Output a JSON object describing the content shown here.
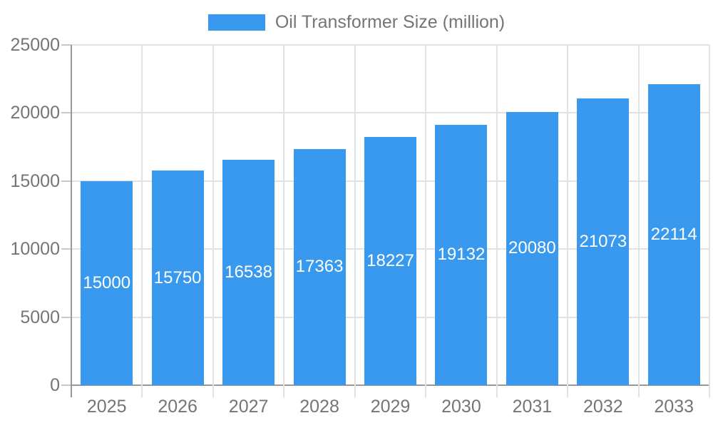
{
  "legend": {
    "label": "Oil Transformer Size (million)"
  },
  "chart_data": {
    "type": "bar",
    "title": "Oil Transformer Size (million)",
    "categories": [
      "2025",
      "2026",
      "2027",
      "2028",
      "2029",
      "2030",
      "2031",
      "2032",
      "2033"
    ],
    "series": [
      {
        "name": "Oil Transformer Size (million)",
        "values": [
          15000,
          15750,
          16538,
          17363,
          18227,
          19132,
          20080,
          21073,
          22114
        ]
      }
    ],
    "value_labels": [
      "15000",
      "15750",
      "16538",
      "17363",
      "18227",
      "19132",
      "20080",
      "21073",
      "22114"
    ],
    "xlabel": "",
    "ylabel": "",
    "ylim": [
      0,
      25000
    ],
    "y_ticks": [
      0,
      5000,
      10000,
      15000,
      20000,
      25000
    ],
    "y_tick_labels": [
      "0",
      "5000",
      "10000",
      "15000",
      "20000",
      "25000"
    ],
    "grid": true,
    "legend_position": "top",
    "colors": {
      "bar": "#3899EF",
      "bar_label": "#FFFFFF",
      "axis_text": "#757575",
      "grid_line": "#E2E2E2",
      "axis_line": "#999999",
      "tick": "#C8C8C8",
      "background": "#FFFFFF"
    }
  }
}
